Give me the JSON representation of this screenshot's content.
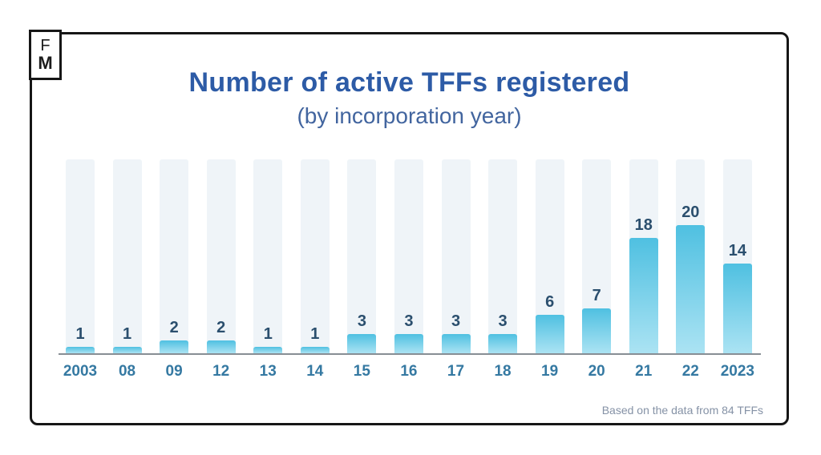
{
  "logo": {
    "line1": "F",
    "line2": "M"
  },
  "header": {
    "title": "Number of active TFFs registered",
    "subtitle": "(by incorporation year)"
  },
  "chart_data": {
    "type": "bar",
    "title": "Number of active TFFs registered",
    "subtitle": "(by incorporation year)",
    "categories": [
      "2003",
      "08",
      "09",
      "12",
      "13",
      "14",
      "15",
      "16",
      "17",
      "18",
      "19",
      "20",
      "21",
      "22",
      "2023"
    ],
    "values": [
      1,
      1,
      2,
      2,
      1,
      1,
      3,
      3,
      3,
      3,
      6,
      7,
      18,
      20,
      14
    ],
    "xlabel": "",
    "ylabel": "",
    "ylim": [
      0,
      20
    ],
    "grid": false,
    "value_labels_shown": true,
    "legend": "none",
    "note": "Based on the data from 84 TFFs"
  },
  "footer": {
    "text": "Based on the data from 84 TFFs"
  },
  "colors": {
    "title": "#2d5ba6",
    "subtitle": "#42659f",
    "bar_gradient_top": "#4fc0e1",
    "bar_gradient_bottom": "#abe3f3",
    "track": "#eff4f8",
    "axis_line": "#888e94",
    "value_label": "#2b4f6e",
    "category_label": "#3579a2",
    "footer_text": "#8592a6",
    "frame_border": "#161616"
  }
}
